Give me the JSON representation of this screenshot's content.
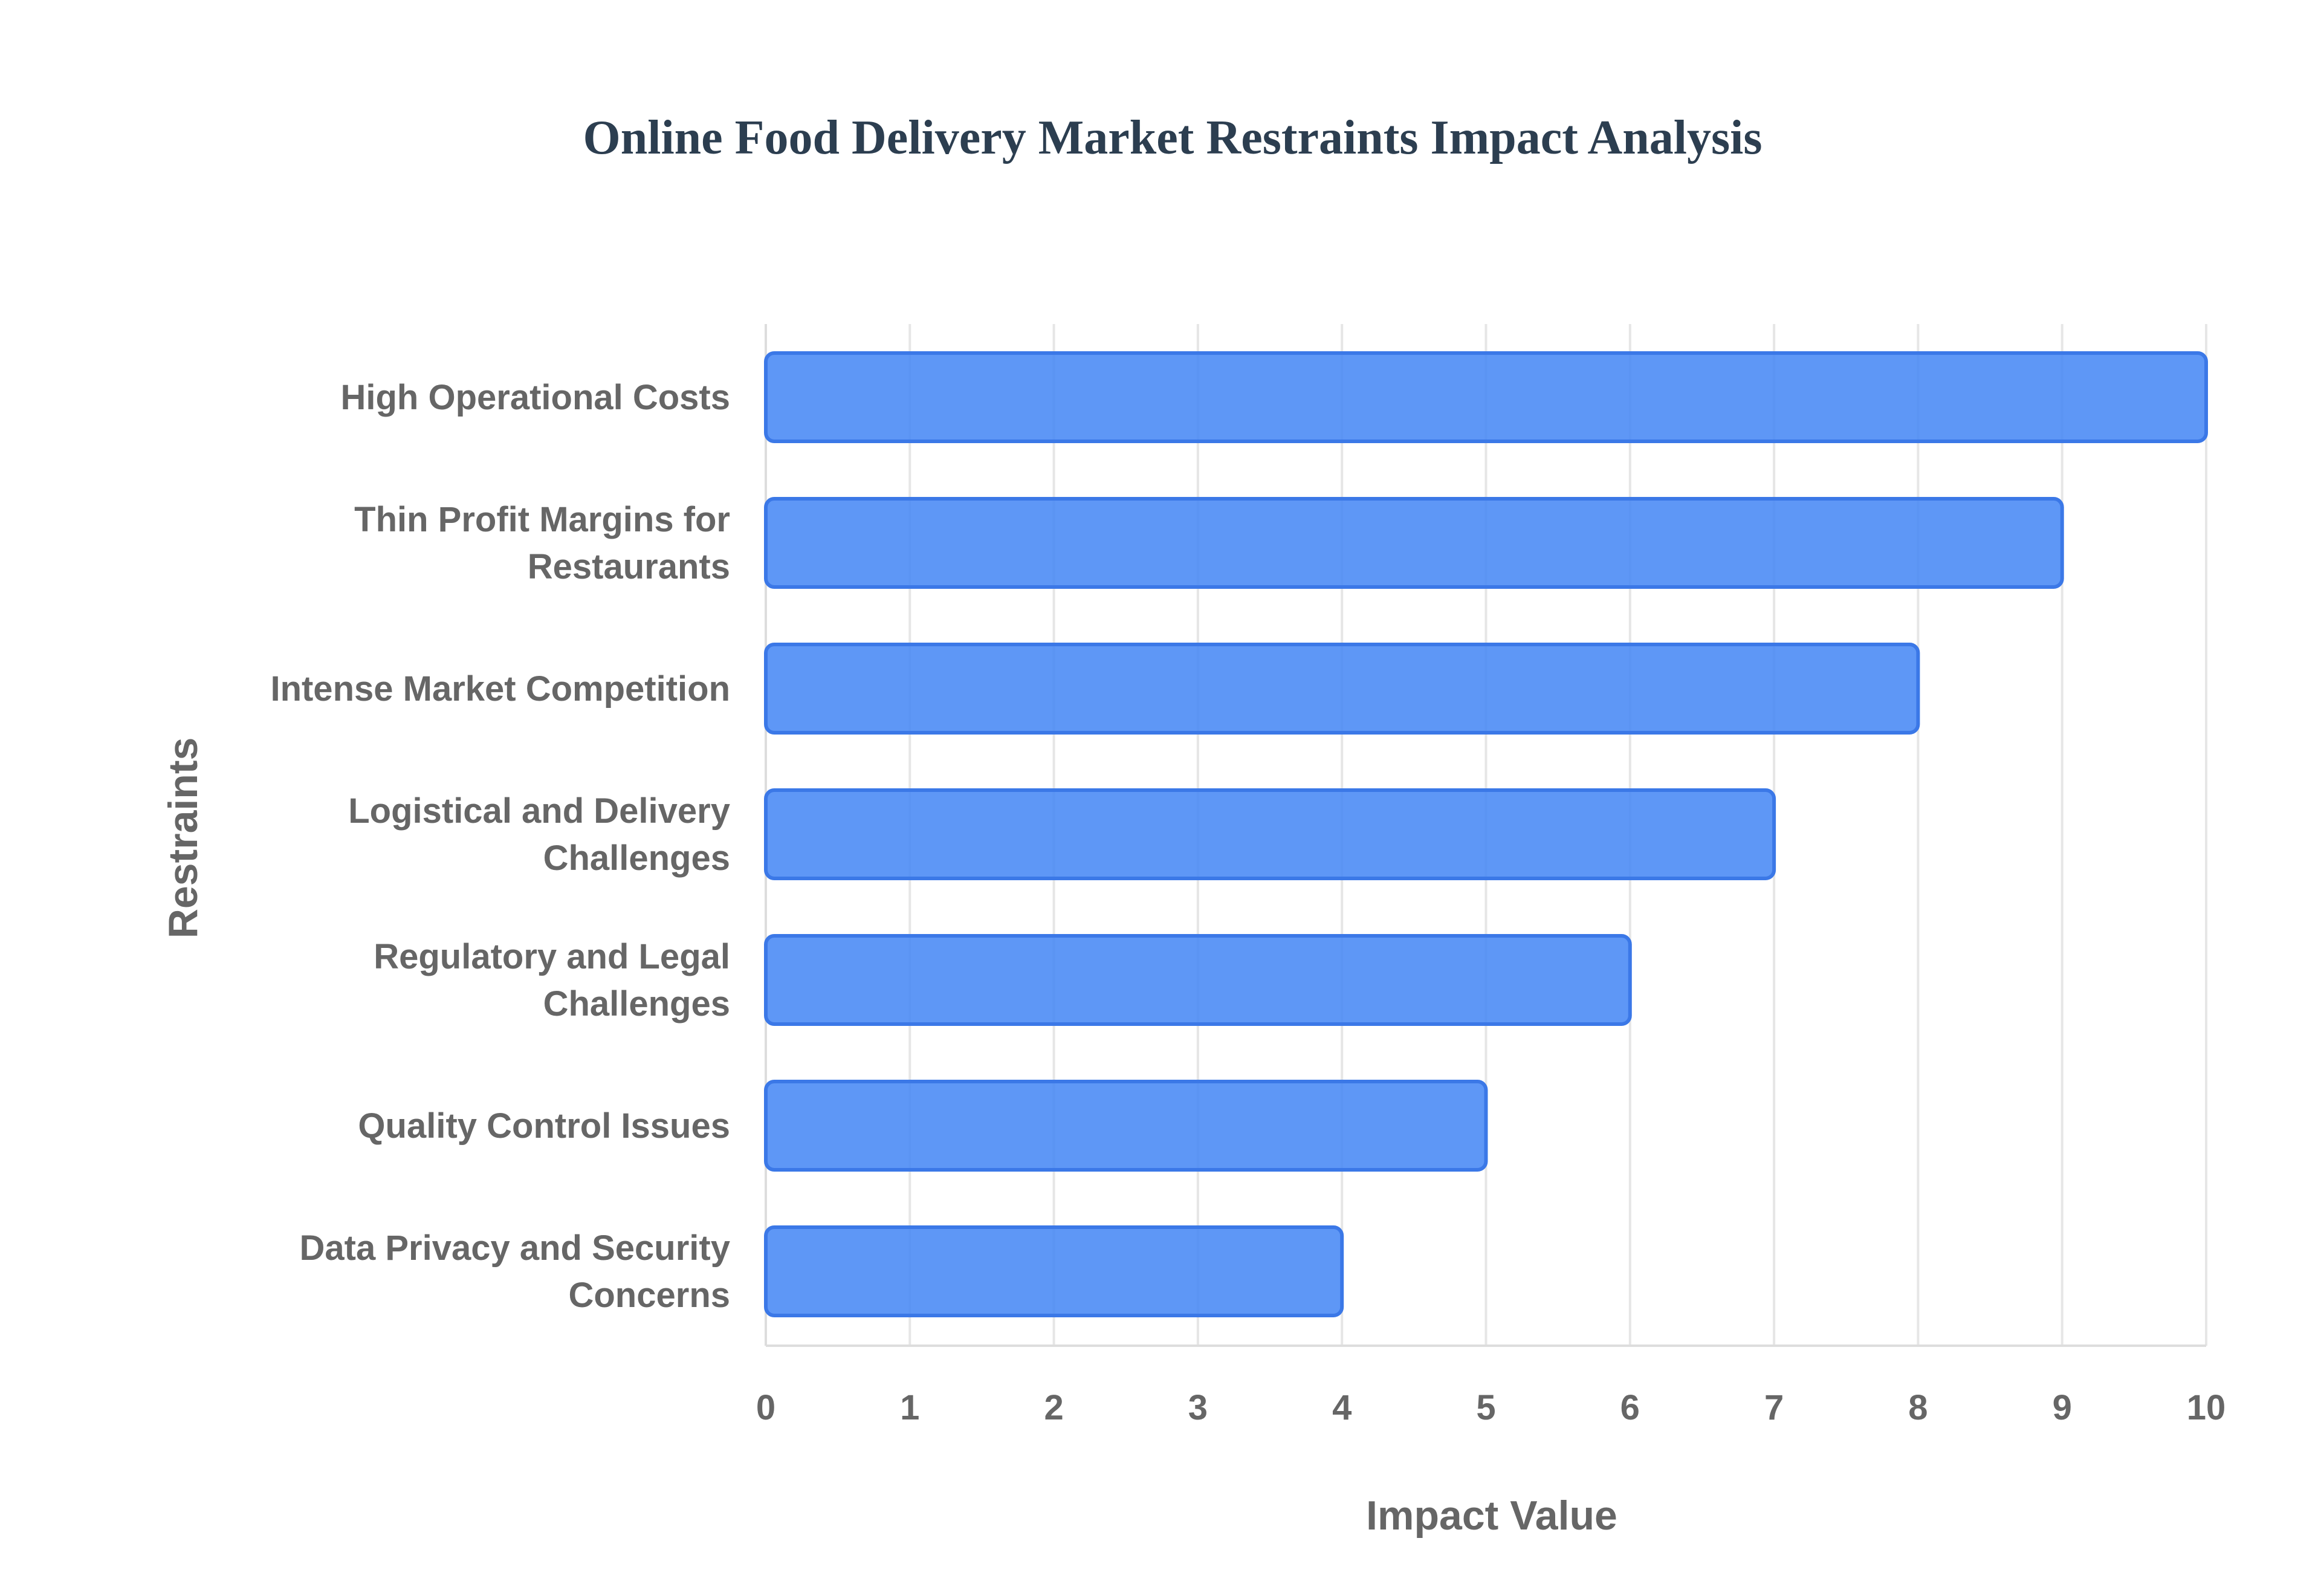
{
  "chart_data": {
    "type": "bar",
    "orientation": "horizontal",
    "title": "Online Food Delivery Market Restraints Impact Analysis",
    "xlabel": "Impact Value",
    "ylabel": "Restraints",
    "xlim": [
      0,
      10
    ],
    "x_ticks": [
      "0",
      "1",
      "2",
      "3",
      "4",
      "5",
      "6",
      "7",
      "8",
      "9",
      "10"
    ],
    "grid": true,
    "legend": "none",
    "categories": [
      [
        "High Operational Costs"
      ],
      [
        "Thin Profit Margins for",
        "Restaurants"
      ],
      [
        "Intense Market Competition"
      ],
      [
        "Logistical and Delivery",
        "Challenges"
      ],
      [
        "Regulatory and Legal",
        "Challenges"
      ],
      [
        "Quality Control Issues"
      ],
      [
        "Data Privacy and Security",
        "Concerns"
      ]
    ],
    "series": [
      {
        "values": [
          10,
          9,
          8,
          7,
          6,
          5,
          4
        ]
      }
    ],
    "colors": {
      "bar_fill": "#4285f4",
      "bar_fill_opacity": 0.85,
      "bar_stroke": "#3b78e7",
      "title": "#2c3e50",
      "text": "#666666",
      "grid": "#e6e6e6"
    }
  }
}
